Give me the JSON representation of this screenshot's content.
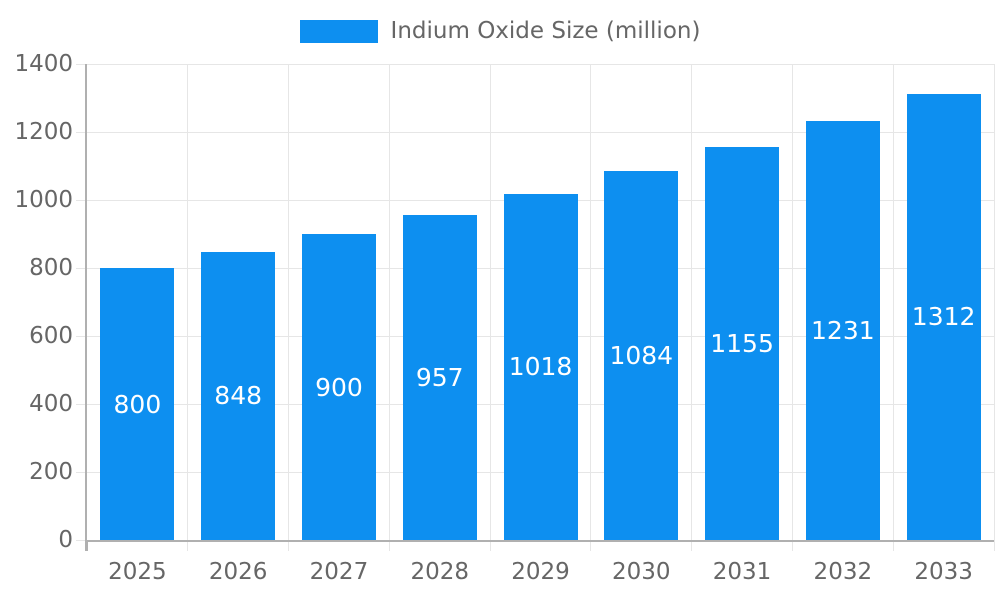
{
  "chart_data": {
    "type": "bar",
    "title": "Indium Oxide Size (million)",
    "legend": {
      "position": "top",
      "label": "Indium Oxide Size (million)"
    },
    "categories": [
      "2025",
      "2026",
      "2027",
      "2028",
      "2029",
      "2030",
      "2031",
      "2032",
      "2033"
    ],
    "values": [
      800,
      848,
      900,
      957,
      1018,
      1084,
      1155,
      1231,
      1312
    ],
    "xlabel": "",
    "ylabel": "",
    "ylim": [
      0,
      1400
    ],
    "ytick_step": 200,
    "ytick_labels": [
      "0",
      "200",
      "400",
      "600",
      "800",
      "1000",
      "1200",
      "1400"
    ],
    "grid": true,
    "bar_labels_shown": true
  },
  "colors": {
    "bar": "#0d8ff0",
    "bar_label_text": "#ffffff",
    "grid_line": "#e6e6e6",
    "axis_line": "#b0b0b0",
    "axis_text": "#666666",
    "background": "#ffffff"
  }
}
